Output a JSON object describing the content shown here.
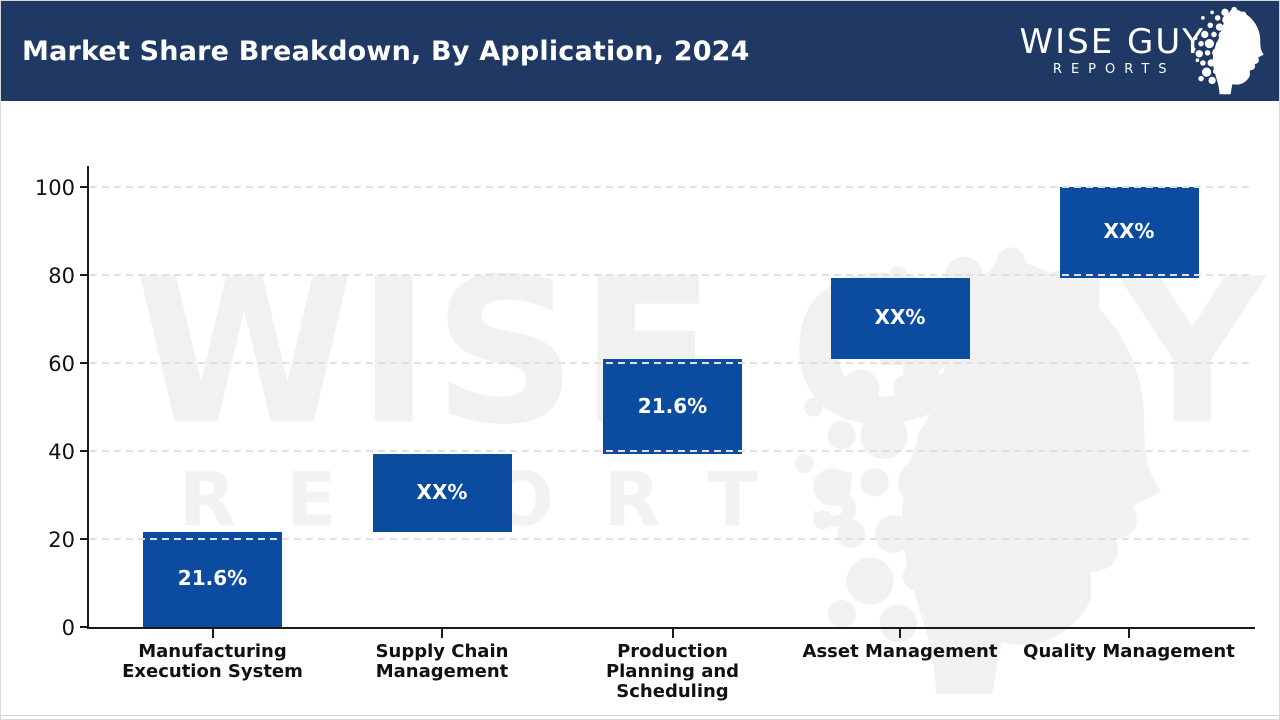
{
  "page": {
    "bg": "#ffffff",
    "frame_color": "#d8d8d8"
  },
  "header": {
    "bg": "#1f3864",
    "title": "Market Share Breakdown, By Application, 2024",
    "title_color": "#ffffff",
    "logo": {
      "line1": "WISE GUY",
      "line2": "REPORTS",
      "icon": "dotted-head-profile",
      "color": "#ffffff"
    }
  },
  "watermark": {
    "line1": "WISE GUY",
    "line2": "REPORTS",
    "icon": "dotted-head-profile",
    "color": "#f1f1f1"
  },
  "chart_data": {
    "type": "bar",
    "subtype": "floating-waterfall",
    "title": "Market Share Breakdown, By Application, 2024",
    "categories": [
      "Manufacturing\nExecution System",
      "Supply Chain\nManagement",
      "Production\nPlanning and\nScheduling",
      "Asset Management",
      "Quality Management"
    ],
    "series": [
      {
        "name": "Market share (%)",
        "segments": [
          {
            "category": "Manufacturing Execution System",
            "start": 0,
            "end": 21.6,
            "label": "21.6%"
          },
          {
            "category": "Supply Chain Management",
            "start": 21.6,
            "end": 39.3,
            "label": "XX%"
          },
          {
            "category": "Production Planning and Scheduling",
            "start": 39.3,
            "end": 60.9,
            "label": "21.6%"
          },
          {
            "category": "Asset Management",
            "start": 60.9,
            "end": 79.4,
            "label": "XX%"
          },
          {
            "category": "Quality Management",
            "start": 79.4,
            "end": 100,
            "label": "XX%"
          }
        ]
      }
    ],
    "xlabel": "",
    "ylabel": "",
    "ylim": [
      0,
      100
    ],
    "yticks": [
      0,
      20,
      40,
      60,
      80,
      100
    ],
    "grid": {
      "horizontal": true,
      "style": "dashed",
      "color": "#e0e0e0",
      "drawn_above_bars": true
    },
    "bar_color": "#0b4ca1",
    "bar_label_color": "#ffffff",
    "axis_color": "#1a1a1a",
    "legend": null
  }
}
